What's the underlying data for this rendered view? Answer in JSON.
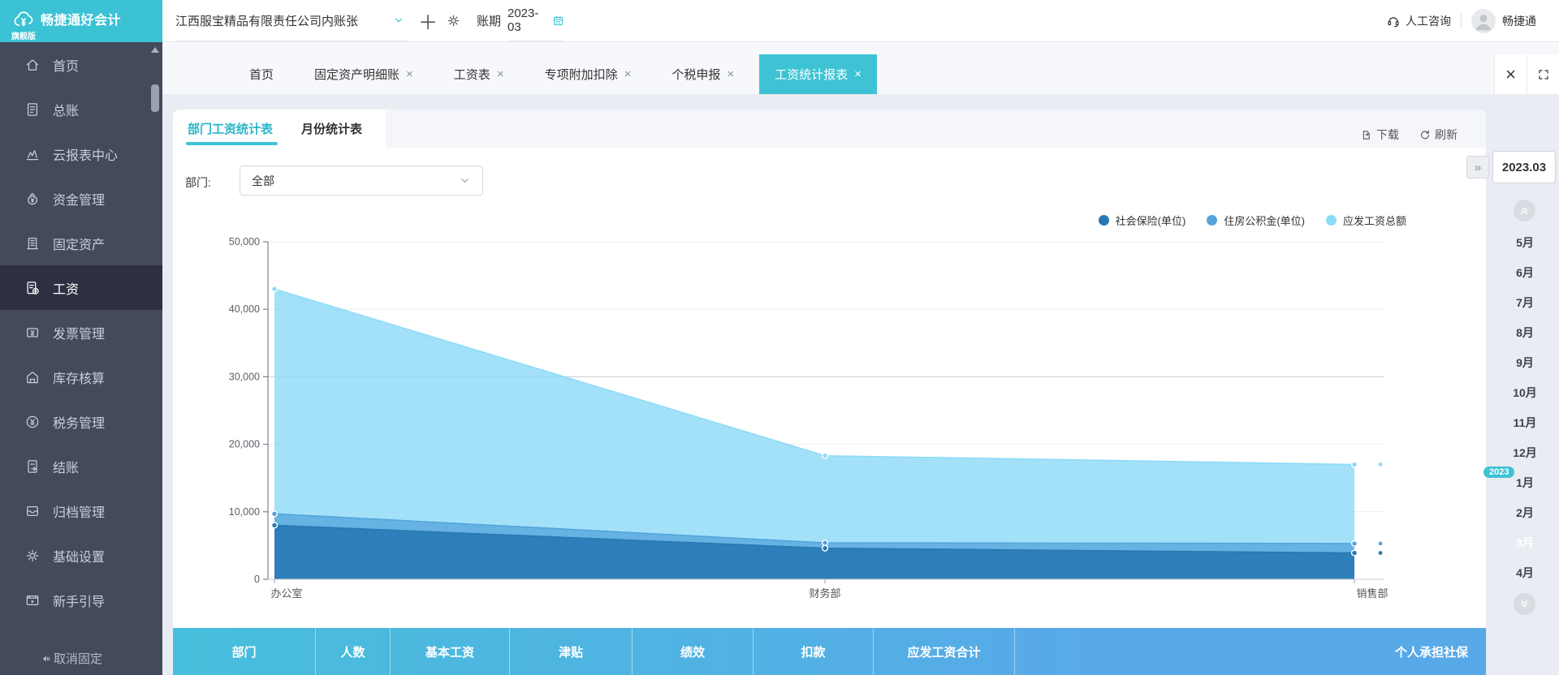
{
  "topbar": {
    "brand": {
      "name": "畅捷通好会计",
      "edition": "旗舰版"
    },
    "company": "江西服宝精品有限责任公司内账张",
    "period_label": "账期",
    "period_value": "2023-03",
    "support": "人工咨询",
    "user": "畅捷通"
  },
  "sidebar": {
    "items": [
      {
        "key": "home",
        "label": "首页",
        "icon": "home-icon",
        "active": false
      },
      {
        "key": "general-ledger",
        "label": "总账",
        "icon": "ledger-icon",
        "active": false
      },
      {
        "key": "cloud-reports",
        "label": "云报表中心",
        "icon": "cloud-report-icon",
        "active": false
      },
      {
        "key": "funds",
        "label": "资金管理",
        "icon": "funds-icon",
        "active": false
      },
      {
        "key": "fixed-assets",
        "label": "固定资产",
        "icon": "building-icon",
        "active": false
      },
      {
        "key": "salary",
        "label": "工资",
        "icon": "salary-icon",
        "active": true
      },
      {
        "key": "invoice",
        "label": "发票管理",
        "icon": "invoice-icon",
        "active": false
      },
      {
        "key": "inventory",
        "label": "库存核算",
        "icon": "inventory-icon",
        "active": false
      },
      {
        "key": "tax",
        "label": "税务管理",
        "icon": "tax-icon",
        "active": false
      },
      {
        "key": "closing",
        "label": "结账",
        "icon": "closing-icon",
        "active": false
      },
      {
        "key": "archive",
        "label": "归档管理",
        "icon": "archive-icon",
        "active": false
      },
      {
        "key": "settings",
        "label": "基础设置",
        "icon": "gear-icon",
        "active": false
      },
      {
        "key": "guide",
        "label": "新手引导",
        "icon": "guide-icon",
        "active": false
      }
    ],
    "unpin_label": "取消固定"
  },
  "tabs": {
    "items": [
      {
        "label": "首页",
        "closable": false,
        "active": false
      },
      {
        "label": "固定资产明细账",
        "closable": true,
        "active": false
      },
      {
        "label": "工资表",
        "closable": true,
        "active": false
      },
      {
        "label": "专项附加扣除",
        "closable": true,
        "active": false
      },
      {
        "label": "个税申报",
        "closable": true,
        "active": false
      },
      {
        "label": "工资统计报表",
        "closable": true,
        "active": true
      }
    ],
    "close_glyph": "×"
  },
  "report": {
    "subtabs": [
      {
        "label": "部门工资统计表",
        "active": true
      },
      {
        "label": "月份统计表",
        "active": false
      }
    ],
    "download_label": "下载",
    "refresh_label": "刷新",
    "filter_label": "部门:",
    "filter_value": "全部"
  },
  "chart_data": {
    "type": "area",
    "title": "",
    "categories": [
      "办公室",
      "财务部",
      "销售部"
    ],
    "series": [
      {
        "name": "社会保险(单位)",
        "color": "#2878b4",
        "values": [
          8000,
          4600,
          3900
        ]
      },
      {
        "name": "住房公积金(单位)",
        "color": "#55a4dc",
        "values": [
          9700,
          5400,
          5300
        ]
      },
      {
        "name": "应发工资总额",
        "color": "#8edbf7",
        "values": [
          43000,
          18300,
          17000
        ]
      }
    ],
    "ylim": [
      0,
      50000
    ],
    "yticks": [
      0,
      10000,
      20000,
      30000,
      40000,
      50000
    ],
    "grid": true,
    "legend_position": "top-right"
  },
  "month_panel": {
    "collapse_glyph": "»",
    "current": "2023.03",
    "year_badge": "2023",
    "months": [
      "5月",
      "6月",
      "7月",
      "8月",
      "9月",
      "10月",
      "11月",
      "12月",
      "1月",
      "2月",
      "3月",
      "4月"
    ],
    "active_month": "3月"
  },
  "table": {
    "columns": [
      "部门",
      "人数",
      "基本工资",
      "津贴",
      "绩效",
      "扣款",
      "应发工资合计",
      "个人承担社保"
    ]
  },
  "colors": {
    "brand_teal": "#3bc2d4",
    "active_tab": "#3ec3d5",
    "table_header_left": "#47bedb",
    "table_header_right": "#58a9e8",
    "month_active": "#2bb9cb"
  }
}
